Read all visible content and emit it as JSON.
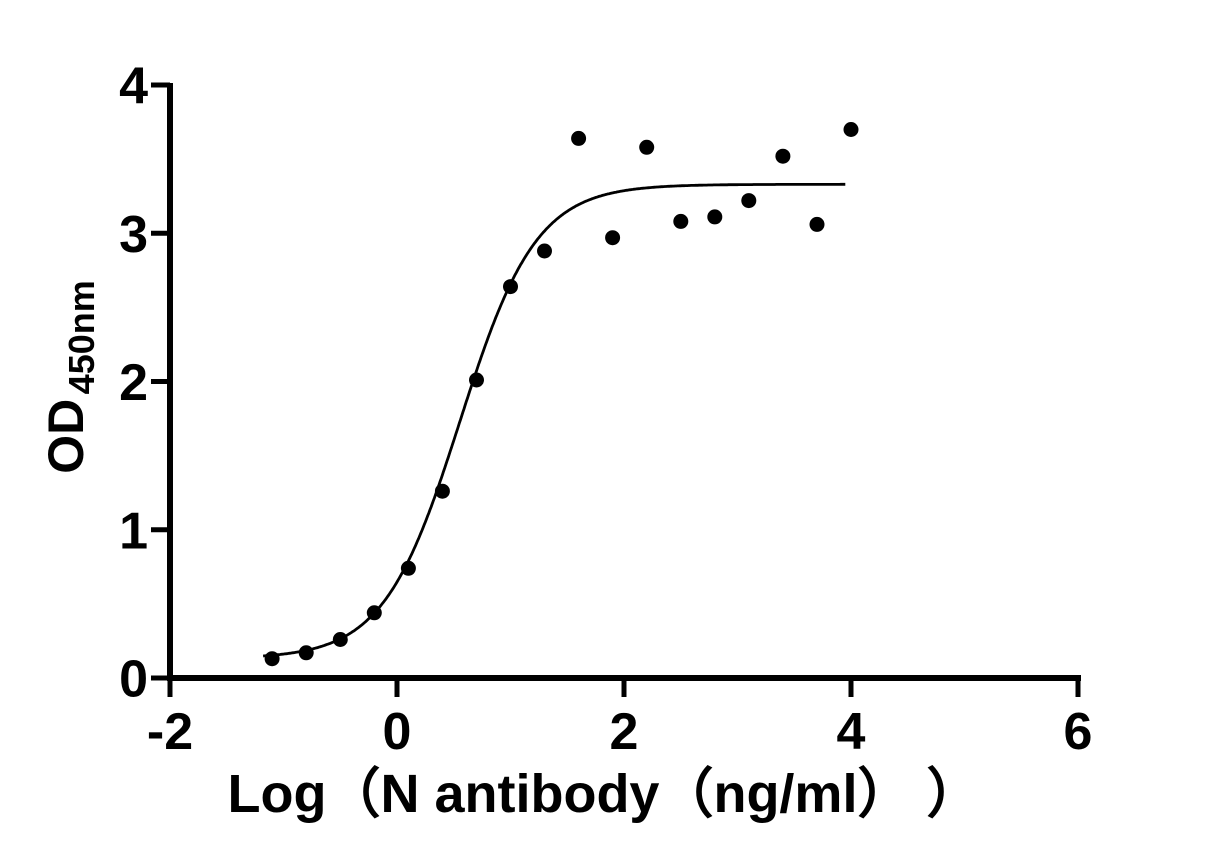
{
  "figure": {
    "background_color": "#ffffff",
    "foreground_color": "#000000"
  },
  "chart_data": {
    "type": "scatter",
    "title": "",
    "xlabel": "Log（N antibody（ng/ml） ）",
    "ylabel_main": "OD",
    "ylabel_sub": "450nm",
    "xlim": [
      -2,
      6
    ],
    "ylim": [
      0,
      4
    ],
    "x_ticks": [
      -2,
      0,
      2,
      4,
      6
    ],
    "x_tick_labels": [
      "-2",
      "0",
      "2",
      "4",
      "6"
    ],
    "y_ticks": [
      0,
      1,
      2,
      3,
      4
    ],
    "y_tick_labels": [
      "0",
      "1",
      "2",
      "3",
      "4"
    ],
    "grid": false,
    "legend": null,
    "point_color": "#000000",
    "line_color": "#000000",
    "points": [
      [
        -1.1,
        0.13
      ],
      [
        -0.8,
        0.17
      ],
      [
        -0.5,
        0.26
      ],
      [
        -0.2,
        0.44
      ],
      [
        0.1,
        0.74
      ],
      [
        0.4,
        1.26
      ],
      [
        0.7,
        2.01
      ],
      [
        1.0,
        2.64
      ],
      [
        1.3,
        2.88
      ],
      [
        1.6,
        3.64
      ],
      [
        1.9,
        2.97
      ],
      [
        2.2,
        3.58
      ],
      [
        2.5,
        3.08
      ],
      [
        2.8,
        3.11
      ],
      [
        3.1,
        3.22
      ],
      [
        3.4,
        3.52
      ],
      [
        3.7,
        3.06
      ],
      [
        4.0,
        3.7
      ]
    ],
    "fit_curve": {
      "model": "four-parameter-logistic",
      "bottom": 0.13,
      "top": 3.33,
      "log_ec50": 0.554,
      "hill_slope": 1.29,
      "x_start": -1.18,
      "x_end": 3.95
    }
  }
}
